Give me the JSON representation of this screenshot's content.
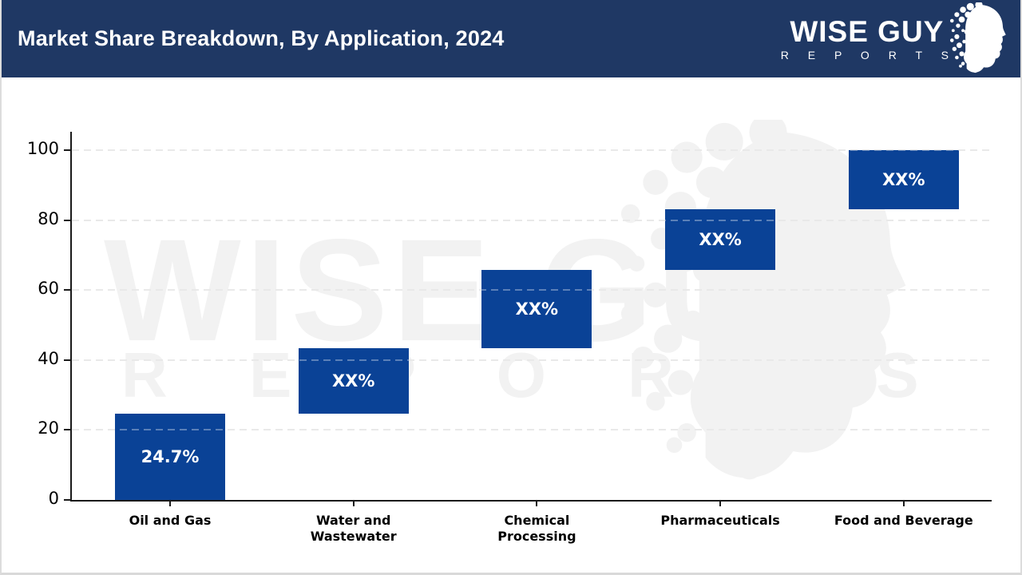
{
  "header": {
    "title": "Market Share Breakdown, By Application, 2024",
    "background_color": "#1f3864",
    "logo": {
      "line1": "WISE GUY",
      "line2": "R E P O R T S"
    }
  },
  "watermark": {
    "line1": "WISE GUY",
    "line2": "R E P O R T S"
  },
  "chart_data": {
    "type": "bar",
    "subtype": "waterfall",
    "title": "Market Share Breakdown, By Application, 2024",
    "categories": [
      "Oil and Gas",
      "Water and\nWastewater",
      "Chemical\nProcessing",
      "Pharmaceuticals",
      "Food and Beverage"
    ],
    "segments": [
      {
        "category": "Oil and Gas",
        "label": "24.7%",
        "start": 0,
        "end": 24.7
      },
      {
        "category": "Water and Wastewater",
        "label": "XX%",
        "start": 24.7,
        "end": 43.4
      },
      {
        "category": "Chemical Processing",
        "label": "XX%",
        "start": 43.4,
        "end": 65.8
      },
      {
        "category": "Pharmaceuticals",
        "label": "XX%",
        "start": 65.8,
        "end": 83.2
      },
      {
        "category": "Food and Beverage",
        "label": "XX%",
        "start": 83.2,
        "end": 100
      }
    ],
    "values": [
      24.7,
      18.7,
      22.4,
      17.4,
      16.8
    ],
    "yticks": [
      0,
      20,
      40,
      60,
      80,
      100
    ],
    "ylim": [
      0,
      104
    ],
    "xlabel": "",
    "ylabel": "",
    "grid": true,
    "gridline_color": "#dedede",
    "bar_color": "#0a4296",
    "bar_label_color": "#ffffff",
    "legend": "none"
  }
}
